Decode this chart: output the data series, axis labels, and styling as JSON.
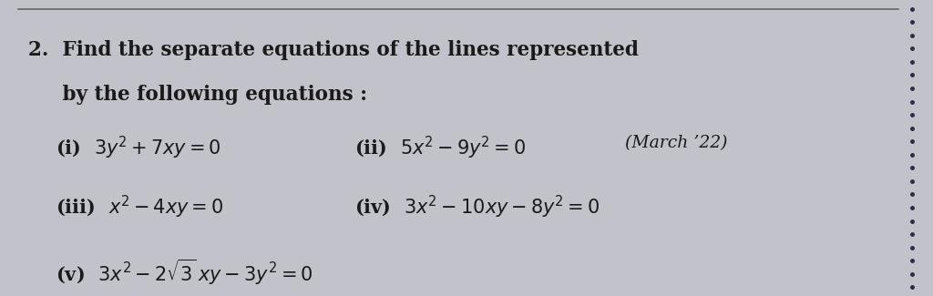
{
  "bg_color": "#c2c2ca",
  "text_color": "#1a1a1a",
  "fig_width": 10.24,
  "fig_height": 3.25,
  "title_line1": "2.  Find the separate equations of the lines represented",
  "title_line2": "     by the following equations :",
  "eq_i": "(i)  $3y^2+7xy=0$",
  "eq_ii": "(ii)  $5x^2-9y^2=0$",
  "eq_march": "(March ’22)",
  "eq_iii": "(iii)  $x^2-4xy=0$",
  "eq_iv": "(iv)  $3x^2-10xy-8y^2=0$",
  "eq_v": "(v)  $3x^2-2\\sqrt{3}\\,xy-3y^2=0$",
  "font_size_title": 15.5,
  "font_size_eq": 15.0,
  "font_size_march": 13.5,
  "dots_color": "#2a2a4a",
  "line_color": "#666666"
}
